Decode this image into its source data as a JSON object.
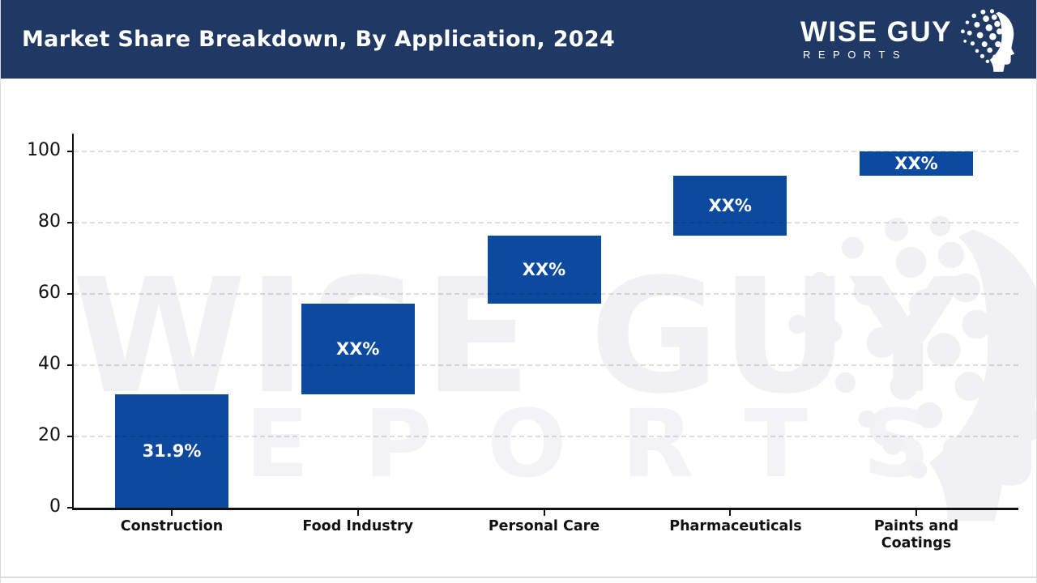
{
  "header": {
    "title": "Market Share Breakdown, By Application, 2024",
    "logo": {
      "line1": "WISE GUY",
      "line2": "REPORTS"
    }
  },
  "watermark": {
    "line1": "WISE GUY",
    "line2": "REPORTS"
  },
  "chart_data": {
    "type": "bar",
    "subtype": "waterfall-stacked-breakdown",
    "title": "Market Share Breakdown, By Application, 2024",
    "categories": [
      "Construction",
      "Food Industry",
      "Personal Care",
      "Pharmaceuticals",
      "Paints and Coatings"
    ],
    "segments": [
      {
        "category": "Construction",
        "start": 0,
        "end": 31.9,
        "label": "31.9%"
      },
      {
        "category": "Food Industry",
        "start": 31.9,
        "end": 57.2,
        "label": "XX%"
      },
      {
        "category": "Personal Care",
        "start": 57.2,
        "end": 76.4,
        "label": "XX%"
      },
      {
        "category": "Pharmaceuticals",
        "start": 76.4,
        "end": 93.1,
        "label": "XX%"
      },
      {
        "category": "Paints and Coatings",
        "start": 93.1,
        "end": 100,
        "label": "XX%"
      }
    ],
    "yticks": [
      0,
      20,
      40,
      60,
      80,
      100
    ],
    "ylim": [
      0,
      105
    ],
    "xlabel": "",
    "ylabel": "",
    "grid": true,
    "legend": "none",
    "bar_color": "#0b4a9e"
  },
  "colors": {
    "header_bg": "#1f3864",
    "bar": "#0b4a9e",
    "axis": "#111111",
    "grid": "#dddddd",
    "watermark": "#f1f1f4"
  }
}
